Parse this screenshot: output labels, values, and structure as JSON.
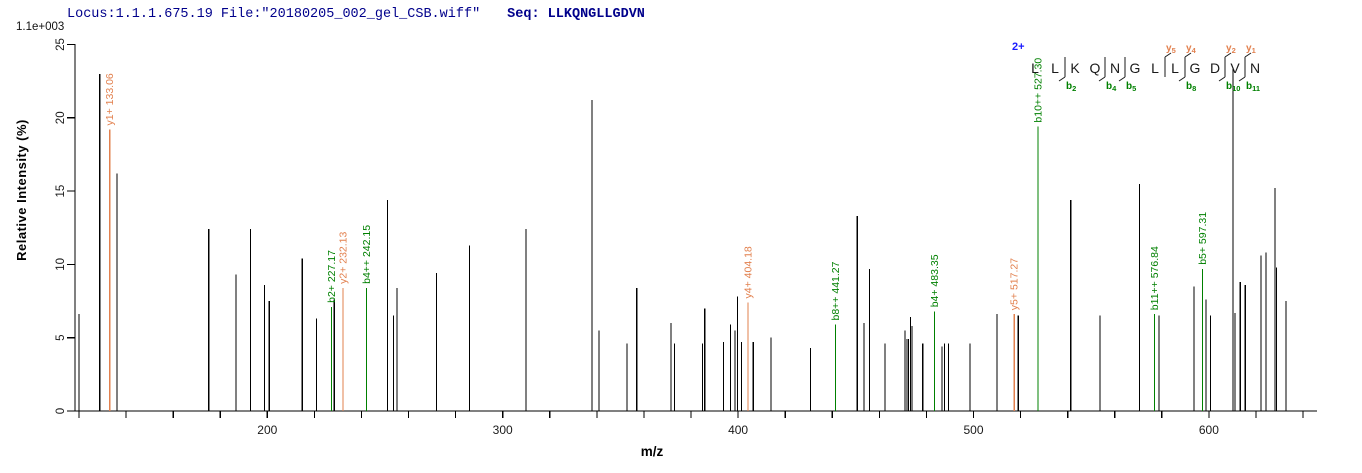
{
  "header": {
    "locus_file": "Locus:1.1.1.675.19 File:\"20180205_002_gel_CSB.wiff\"",
    "seq_label": "Seq: LLKQNGLLGDVN",
    "scale_note": "1.1e+003"
  },
  "colors": {
    "axis": "#000000",
    "peak": "#000000",
    "b_ion": "#008000",
    "y_ion": "#e2804e",
    "title": "#00008b",
    "charge": "#1a1aff",
    "tick_text": "#1a1a1a",
    "residue_text": "#1a1a1a"
  },
  "chart_data": {
    "type": "bar",
    "subtype": "ms2-stem-spectrum",
    "title": "Locus:1.1.1.675.19 File:\"20180205_002_gel_CSB.wiff\"  Seq: LLKQNGLLGDVN",
    "xlabel": "m/z",
    "ylabel": "Relative Intensity (%)",
    "intensity_scale": "1.1e+003",
    "xlim": [
      118,
      646
    ],
    "ylim": [
      0,
      25
    ],
    "x_ticks_labeled": [
      200,
      300,
      400,
      500,
      600
    ],
    "x_tick_step": 20,
    "x_tick_min": 120,
    "x_tick_max": 640,
    "y_ticks": [
      0,
      5,
      10,
      15,
      20,
      25
    ],
    "grid": false,
    "legend": "none",
    "peaks": [
      {
        "mz": 120.0,
        "i": 6.6
      },
      {
        "mz": 128.8,
        "i": 23.0
      },
      {
        "mz": 133.06,
        "i": 19.2,
        "ion": "y",
        "label": "y1+ 133.06"
      },
      {
        "mz": 136.2,
        "i": 16.2
      },
      {
        "mz": 175.1,
        "i": 12.4
      },
      {
        "mz": 186.7,
        "i": 9.3
      },
      {
        "mz": 192.8,
        "i": 12.4
      },
      {
        "mz": 198.7,
        "i": 8.6
      },
      {
        "mz": 200.8,
        "i": 7.5
      },
      {
        "mz": 214.8,
        "i": 10.4
      },
      {
        "mz": 220.8,
        "i": 6.3
      },
      {
        "mz": 227.17,
        "i": 7.1,
        "ion": "b",
        "label": "b2+ 227.17"
      },
      {
        "mz": 228.4,
        "i": 7.6
      },
      {
        "mz": 232.13,
        "i": 8.4,
        "ion": "y",
        "label": "y2+ 232.13"
      },
      {
        "mz": 242.15,
        "i": 8.4,
        "ion": "b",
        "label": "b4++ 242.15"
      },
      {
        "mz": 251.0,
        "i": 14.4
      },
      {
        "mz": 253.5,
        "i": 6.5
      },
      {
        "mz": 255.0,
        "i": 8.4
      },
      {
        "mz": 271.9,
        "i": 9.4
      },
      {
        "mz": 285.9,
        "i": 11.3
      },
      {
        "mz": 309.9,
        "i": 12.4
      },
      {
        "mz": 337.9,
        "i": 21.2
      },
      {
        "mz": 340.8,
        "i": 5.5
      },
      {
        "mz": 352.7,
        "i": 4.6
      },
      {
        "mz": 356.9,
        "i": 8.4
      },
      {
        "mz": 371.5,
        "i": 6.0
      },
      {
        "mz": 372.9,
        "i": 4.6
      },
      {
        "mz": 384.8,
        "i": 4.6
      },
      {
        "mz": 385.8,
        "i": 7.0
      },
      {
        "mz": 393.7,
        "i": 4.7
      },
      {
        "mz": 396.8,
        "i": 5.9
      },
      {
        "mz": 398.6,
        "i": 5.5
      },
      {
        "mz": 399.8,
        "i": 7.8
      },
      {
        "mz": 401.4,
        "i": 4.7
      },
      {
        "mz": 404.18,
        "i": 7.4,
        "ion": "y",
        "label": "y4+ 404.18"
      },
      {
        "mz": 406.4,
        "i": 4.7
      },
      {
        "mz": 413.9,
        "i": 5.0
      },
      {
        "mz": 430.7,
        "i": 4.3
      },
      {
        "mz": 441.27,
        "i": 5.9,
        "ion": "b",
        "label": "b8++ 441.27"
      },
      {
        "mz": 450.6,
        "i": 13.3
      },
      {
        "mz": 453.4,
        "i": 6.0
      },
      {
        "mz": 455.8,
        "i": 9.7
      },
      {
        "mz": 462.3,
        "i": 4.6
      },
      {
        "mz": 470.9,
        "i": 5.5
      },
      {
        "mz": 471.7,
        "i": 4.9
      },
      {
        "mz": 472.4,
        "i": 4.9
      },
      {
        "mz": 473.2,
        "i": 6.4
      },
      {
        "mz": 473.9,
        "i": 5.8
      },
      {
        "mz": 478.4,
        "i": 4.6
      },
      {
        "mz": 483.35,
        "i": 6.8,
        "ion": "b",
        "label": "b4+ 483.35"
      },
      {
        "mz": 486.6,
        "i": 4.4
      },
      {
        "mz": 487.6,
        "i": 4.6
      },
      {
        "mz": 489.3,
        "i": 4.6
      },
      {
        "mz": 498.5,
        "i": 4.6
      },
      {
        "mz": 509.9,
        "i": 6.6
      },
      {
        "mz": 517.27,
        "i": 6.6,
        "ion": "y",
        "label": "y5+ 517.27"
      },
      {
        "mz": 519.0,
        "i": 6.5
      },
      {
        "mz": 527.3,
        "i": 19.4,
        "ion": "b",
        "label": "b10++ 527.30"
      },
      {
        "mz": 541.3,
        "i": 14.4
      },
      {
        "mz": 553.7,
        "i": 6.5
      },
      {
        "mz": 570.5,
        "i": 15.5
      },
      {
        "mz": 576.84,
        "i": 6.6,
        "ion": "b",
        "label": "b11++ 576.84"
      },
      {
        "mz": 578.7,
        "i": 6.5
      },
      {
        "mz": 593.6,
        "i": 8.5
      },
      {
        "mz": 597.31,
        "i": 9.7,
        "ion": "b",
        "label": "b5+ 597.31"
      },
      {
        "mz": 598.8,
        "i": 7.6
      },
      {
        "mz": 600.6,
        "i": 6.5
      },
      {
        "mz": 610.2,
        "i": 23.4
      },
      {
        "mz": 611.1,
        "i": 6.7
      },
      {
        "mz": 613.3,
        "i": 8.8
      },
      {
        "mz": 615.4,
        "i": 8.6
      },
      {
        "mz": 622.1,
        "i": 10.6
      },
      {
        "mz": 624.3,
        "i": 10.8
      },
      {
        "mz": 628.1,
        "i": 15.2
      },
      {
        "mz": 628.7,
        "i": 9.8
      },
      {
        "mz": 632.8,
        "i": 7.5
      }
    ],
    "sequence_overlay": {
      "charge_label": "2+",
      "residues": [
        "L",
        "L",
        "K",
        "Q",
        "N",
        "G",
        "L",
        "L",
        "G",
        "D",
        "V",
        "N"
      ],
      "b_fragments": [
        2,
        4,
        5,
        8,
        10,
        11
      ],
      "y_fragments": [
        1,
        2,
        4,
        5
      ]
    }
  }
}
